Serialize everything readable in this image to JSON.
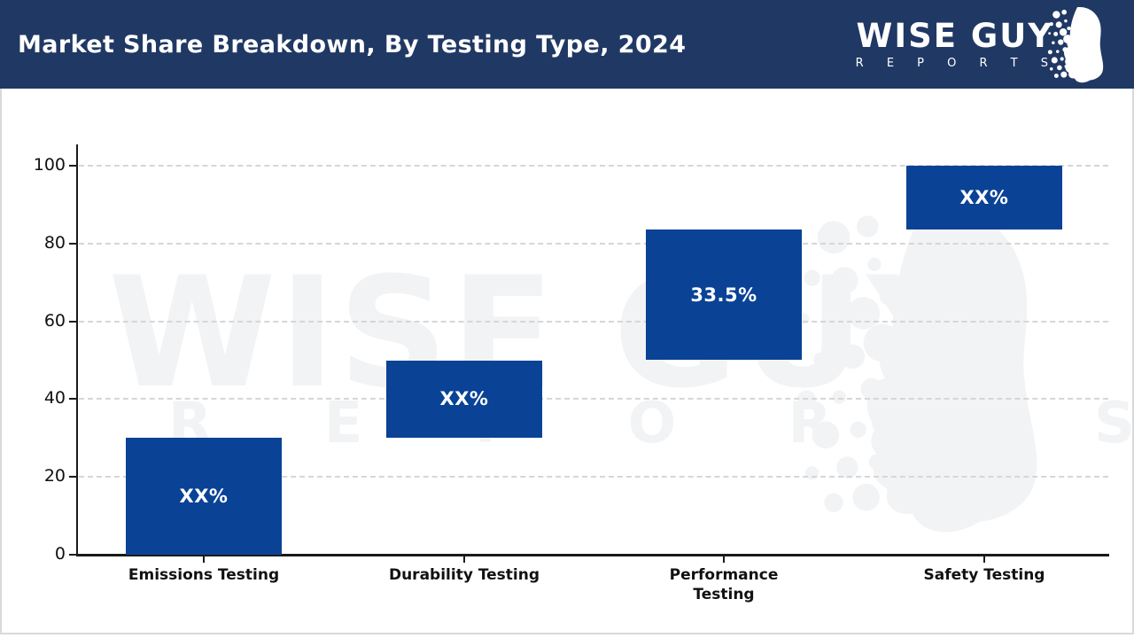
{
  "header": {
    "title": "Market Share Breakdown, By Testing Type, 2024",
    "bg_color": "#203864",
    "logo": {
      "line1": "WISE GUY",
      "line2": "R E P O R T S"
    }
  },
  "watermark": {
    "line1": "WISE GUY",
    "line2": "R E P O R T S"
  },
  "chart_data": {
    "type": "bar",
    "subtype": "waterfall",
    "title": "Market Share Breakdown, By Testing Type, 2024",
    "categories": [
      "Emissions Testing",
      "Durability Testing",
      "Performance Testing",
      "Safety Testing"
    ],
    "category_display_labels": [
      "Emissions Testing",
      "Durability Testing",
      "Performance\nTesting",
      "Safety Testing"
    ],
    "series": [
      {
        "name": "Market Share (%)",
        "segments": [
          {
            "category": "Emissions Testing",
            "start": 0,
            "end": 30,
            "delta": 30,
            "label": "XX%"
          },
          {
            "category": "Durability Testing",
            "start": 30,
            "end": 50,
            "delta": 20,
            "label": "XX%"
          },
          {
            "category": "Performance Testing",
            "start": 50,
            "end": 83.5,
            "delta": 33.5,
            "label": "33.5%"
          },
          {
            "category": "Safety Testing",
            "start": 83.5,
            "end": 100,
            "delta": 16.5,
            "label": "XX%"
          }
        ]
      }
    ],
    "xlabel": "",
    "ylabel": "",
    "ylim": [
      0,
      100
    ],
    "yticks": [
      0,
      20,
      40,
      60,
      80,
      100
    ],
    "grid": "horizontal-dashed",
    "legend": "none",
    "bar_color": "#0a4296",
    "bar_label_color": "#ffffff",
    "axis_color": "#1a1a1a"
  }
}
